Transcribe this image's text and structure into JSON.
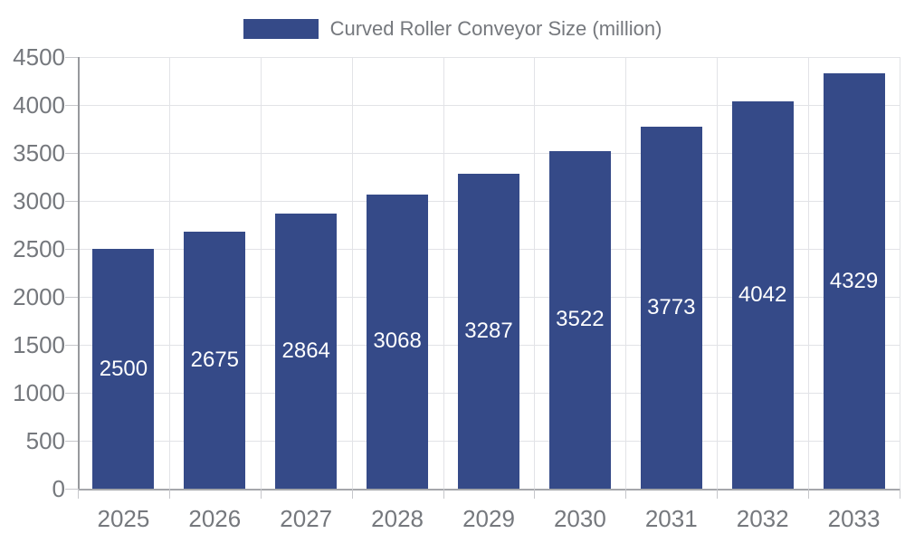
{
  "legend": {
    "label": "Curved Roller Conveyor Size (million)"
  },
  "colors": {
    "bar": "#354A88",
    "gridline": "#E2E3E7",
    "axis_line": "#A0A2A6",
    "tick": "#C6C7CB",
    "axis_label": "#75787D",
    "value_label": "#FFFFFF",
    "background": "#FFFFFF"
  },
  "chart_data": {
    "type": "bar",
    "title": "Curved Roller Conveyor Size (million)",
    "categories": [
      "2025",
      "2026",
      "2027",
      "2028",
      "2029",
      "2030",
      "2031",
      "2032",
      "2033"
    ],
    "series": [
      {
        "name": "Curved Roller Conveyor Size (million)",
        "values": [
          2500,
          2675,
          2864,
          3068,
          3287,
          3522,
          3773,
          4042,
          4329
        ]
      }
    ],
    "xlabel": "",
    "ylabel": "",
    "ylim": [
      0,
      4500
    ],
    "yticks": [
      0,
      500,
      1000,
      1500,
      2000,
      2500,
      3000,
      3500,
      4000,
      4500
    ],
    "grid": true,
    "legend_position": "top-center",
    "value_label_position": "inside-center"
  }
}
